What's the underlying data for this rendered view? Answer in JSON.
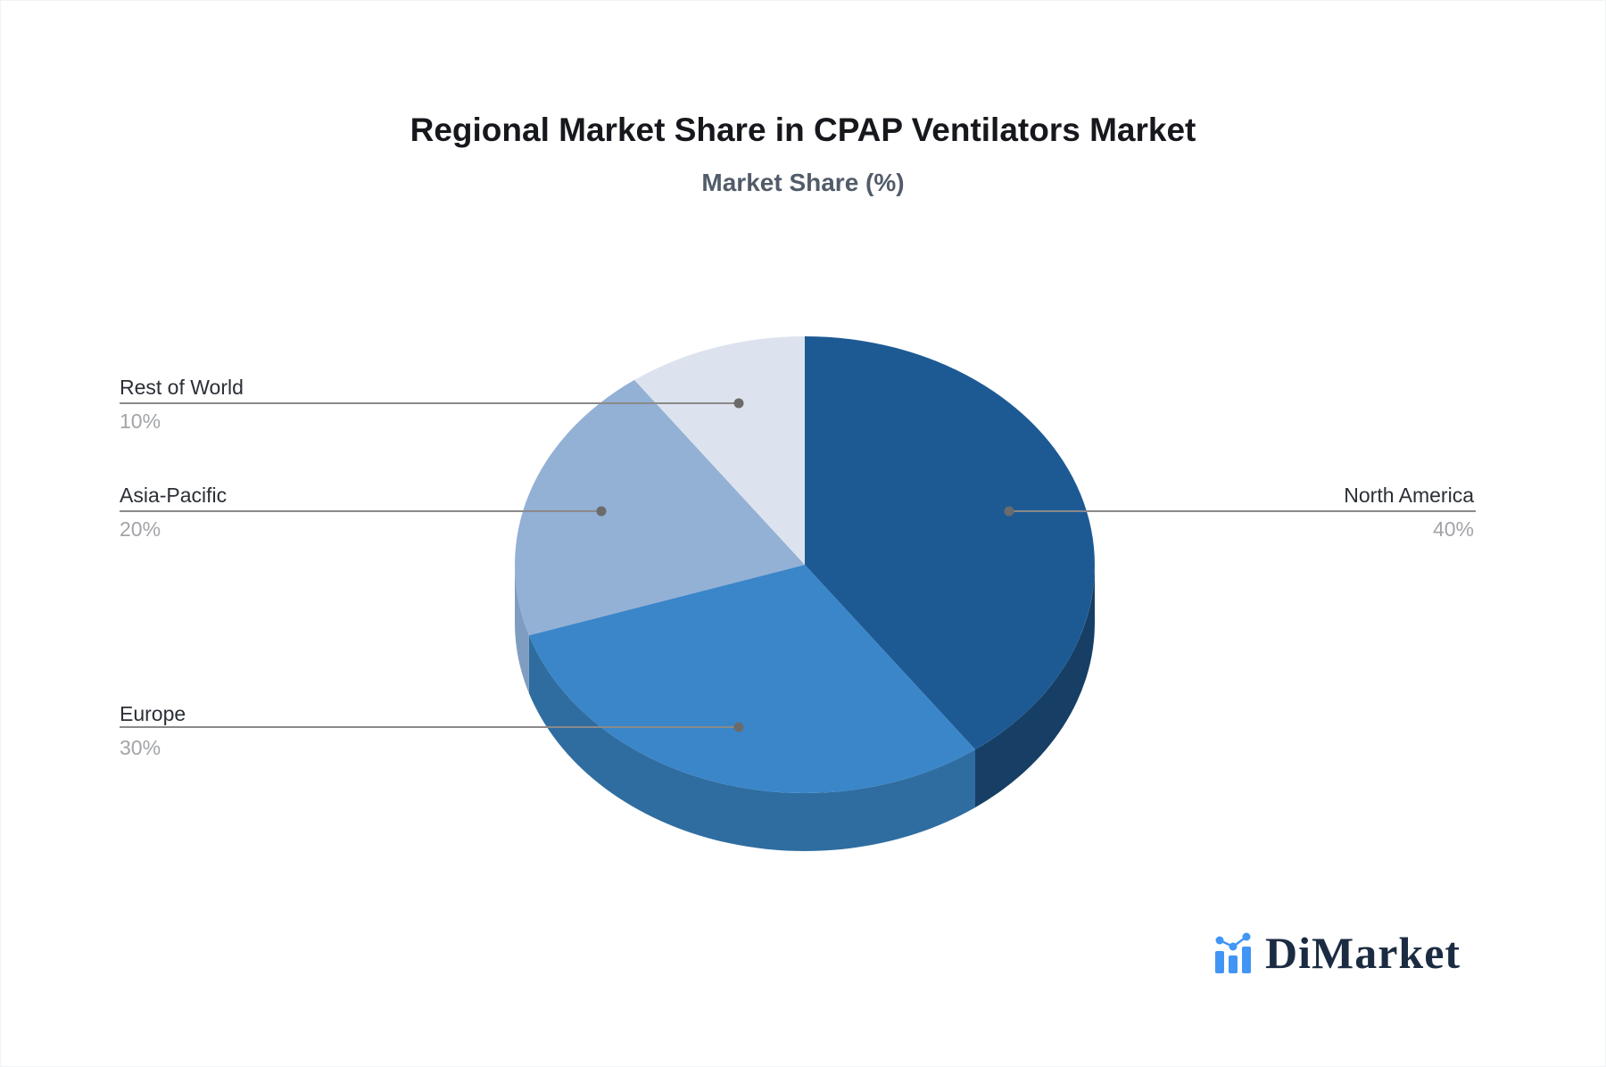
{
  "header": {
    "title": "Regional Market Share in CPAP Ventilators Market",
    "subtitle": "Market Share (%)"
  },
  "chart_data": {
    "type": "pie",
    "style": "3d-pie",
    "title": "Regional Market Share in CPAP Ventilators Market",
    "subtitle": "Market Share (%)",
    "unit": "%",
    "start_angle_deg": 0,
    "direction": "clockwise",
    "legend_position": "none",
    "categories": [
      "North America",
      "Europe",
      "Asia-Pacific",
      "Rest of World"
    ],
    "values": [
      40,
      30,
      20,
      10
    ],
    "labels": [
      {
        "name": "North America",
        "value": "40%",
        "side": "right"
      },
      {
        "name": "Europe",
        "value": "30%",
        "side": "left"
      },
      {
        "name": "Asia-Pacific",
        "value": "20%",
        "side": "left"
      },
      {
        "name": "Rest of World",
        "value": "10%",
        "side": "left"
      }
    ],
    "top_colors": [
      "#1d5a94",
      "#3a86c9",
      "#93b0d5",
      "#dde3ee"
    ],
    "side_colors": [
      "#173f66",
      "#2f6da0",
      "#7f9dc1",
      "#c7d1e2"
    ],
    "label_style": {
      "name_color": "#2b2f36",
      "value_color": "#a2a4a8",
      "line_color": "#8a8a8a",
      "dot_color": "#6b6b6b"
    }
  },
  "branding": {
    "logo_text": "DiMarket",
    "logo_icon": "bar-chart-logo-icon",
    "icon_color": "#4196f5",
    "text_color": "#1b2b42"
  }
}
